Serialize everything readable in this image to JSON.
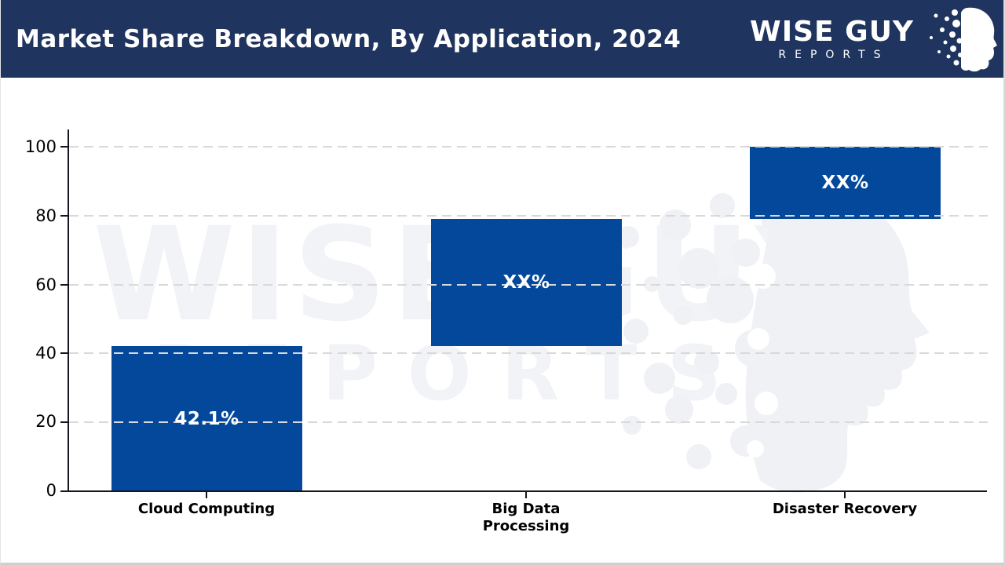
{
  "header": {
    "title": "Market Share Breakdown, By Application, 2024",
    "logo": {
      "wordmark": "WISE GUY",
      "subtext": "REPORTS"
    }
  },
  "watermark": {
    "wordmark": "WISE GUY",
    "subtext": "REPORTS"
  },
  "chart_data": {
    "type": "bar",
    "subtype": "floating-waterfall-bars",
    "title": "Market Share Breakdown, By Application, 2024",
    "categories": [
      "Cloud Computing",
      "Big Data Processing",
      "Disaster Recovery"
    ],
    "tick_labels": [
      "Cloud Computing",
      "Big Data\nProcessing",
      "Disaster Recovery"
    ],
    "segments": [
      {
        "category": "Cloud Computing",
        "start": 0,
        "end": 42.1,
        "label": "42.1%"
      },
      {
        "category": "Big Data Processing",
        "start": 42.1,
        "end": 79,
        "label": "XX%"
      },
      {
        "category": "Disaster Recovery",
        "start": 79,
        "end": 100,
        "label": "XX%"
      }
    ],
    "ylim": [
      0,
      100
    ],
    "yticks": [
      0,
      20,
      40,
      60,
      80,
      100
    ],
    "grid": "horizontal-dashed",
    "legend": "none",
    "bar_color": "#04489b",
    "bar_label_color": "#ffffff"
  },
  "colors": {
    "header_bg": "#1f345e",
    "bar": "#04489b",
    "gridline": "#d9d9d9",
    "axis": "#15151f",
    "watermark": "#f2f3f6"
  }
}
